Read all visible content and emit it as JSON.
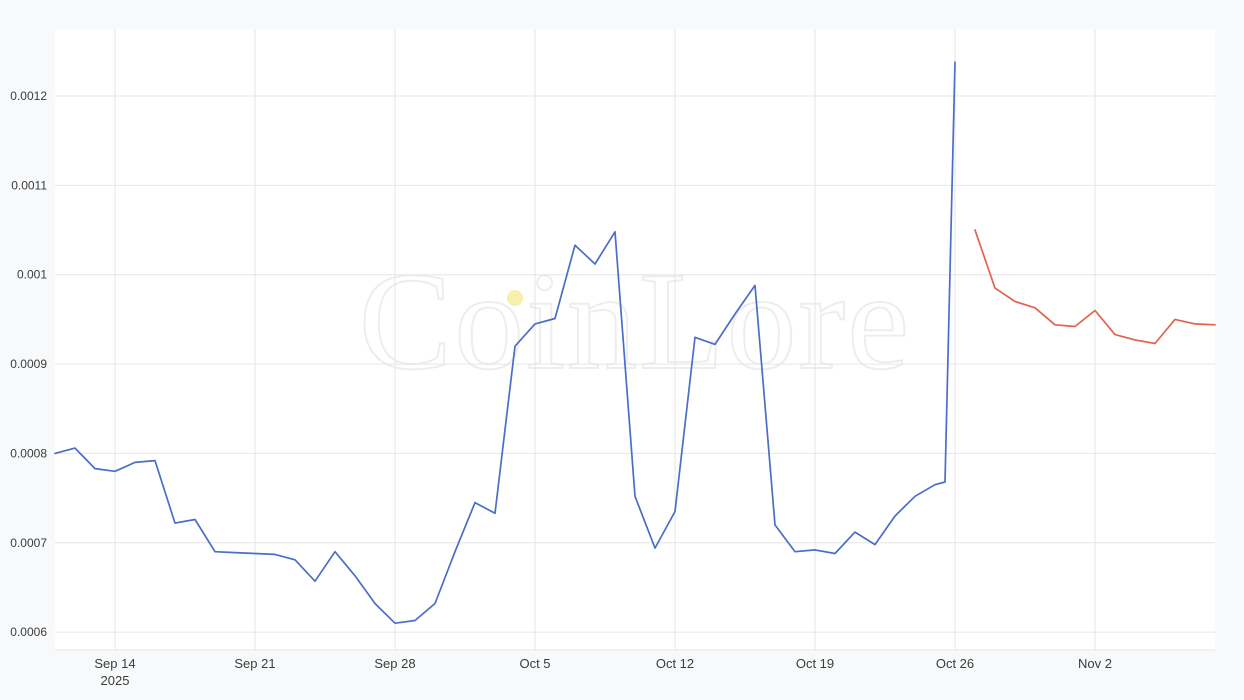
{
  "watermark": "CoinLore",
  "chart_data": {
    "type": "line",
    "title": "",
    "xlabel": "",
    "ylabel": "",
    "grid": true,
    "legend": "none",
    "x_domain": [
      0,
      58
    ],
    "y_domain": [
      0.00058,
      0.001275
    ],
    "y_ticks": [
      {
        "value": 0.0006,
        "label": "0.0006"
      },
      {
        "value": 0.0007,
        "label": "0.0007"
      },
      {
        "value": 0.0008,
        "label": "0.0008"
      },
      {
        "value": 0.0009,
        "label": "0.0009"
      },
      {
        "value": 0.001,
        "label": "0.001"
      },
      {
        "value": 0.0011,
        "label": "0.0011"
      },
      {
        "value": 0.0012,
        "label": "0.0012"
      }
    ],
    "x_ticks": [
      {
        "day": 3,
        "label": "Sep 14",
        "sublabel": "2025"
      },
      {
        "day": 10,
        "label": "Sep 21"
      },
      {
        "day": 17,
        "label": "Sep 28"
      },
      {
        "day": 24,
        "label": "Oct 5"
      },
      {
        "day": 31,
        "label": "Oct 12"
      },
      {
        "day": 38,
        "label": "Oct 19"
      },
      {
        "day": 45,
        "label": "Oct 26"
      },
      {
        "day": 52,
        "label": "Nov 2"
      }
    ],
    "series": [
      {
        "name": "historical-price",
        "color": "#4a6dc8",
        "points": [
          [
            0,
            0.0008
          ],
          [
            1,
            0.000806
          ],
          [
            2,
            0.000783
          ],
          [
            3,
            0.00078
          ],
          [
            4,
            0.00079
          ],
          [
            5,
            0.000792
          ],
          [
            6,
            0.000722
          ],
          [
            7,
            0.000726
          ],
          [
            8,
            0.00069
          ],
          [
            9,
            0.000689
          ],
          [
            10,
            0.000688
          ],
          [
            11,
            0.000687
          ],
          [
            12,
            0.000681
          ],
          [
            13,
            0.000657
          ],
          [
            14,
            0.00069
          ],
          [
            15,
            0.000663
          ],
          [
            16,
            0.000632
          ],
          [
            17,
            0.00061
          ],
          [
            18,
            0.000613
          ],
          [
            19,
            0.000632
          ],
          [
            20,
            0.00069
          ],
          [
            21,
            0.000745
          ],
          [
            22,
            0.000733
          ],
          [
            23,
            0.00092
          ],
          [
            24,
            0.000945
          ],
          [
            25,
            0.000951
          ],
          [
            26,
            0.001033
          ],
          [
            27,
            0.001012
          ],
          [
            28,
            0.001048
          ],
          [
            29,
            0.000752
          ],
          [
            30,
            0.000694
          ],
          [
            31,
            0.000735
          ],
          [
            32,
            0.00093
          ],
          [
            33,
            0.000922
          ],
          [
            34,
            0.000956
          ],
          [
            35,
            0.000988
          ],
          [
            36,
            0.00072
          ],
          [
            37,
            0.00069
          ],
          [
            38,
            0.000692
          ],
          [
            39,
            0.000688
          ],
          [
            40,
            0.000712
          ],
          [
            41,
            0.000698
          ],
          [
            42,
            0.00073
          ],
          [
            43,
            0.000752
          ],
          [
            44,
            0.000765
          ],
          [
            44.5,
            0.000768
          ],
          [
            45,
            0.001238
          ]
        ]
      },
      {
        "name": "forecast-price",
        "color": "#e2634b",
        "points": [
          [
            46,
            0.00105
          ],
          [
            47,
            0.000985
          ],
          [
            48,
            0.00097
          ],
          [
            49,
            0.000963
          ],
          [
            50,
            0.000944
          ],
          [
            51,
            0.000942
          ],
          [
            52,
            0.00096
          ],
          [
            53,
            0.000933
          ],
          [
            54,
            0.000927
          ],
          [
            55,
            0.000923
          ],
          [
            56,
            0.00095
          ],
          [
            57,
            0.000945
          ],
          [
            58,
            0.000944
          ]
        ]
      }
    ],
    "markers": [
      {
        "name": "moon-phase-marker",
        "day": 23,
        "value": 0.000974,
        "radius": 8,
        "color": "#f5ee9e"
      }
    ]
  }
}
